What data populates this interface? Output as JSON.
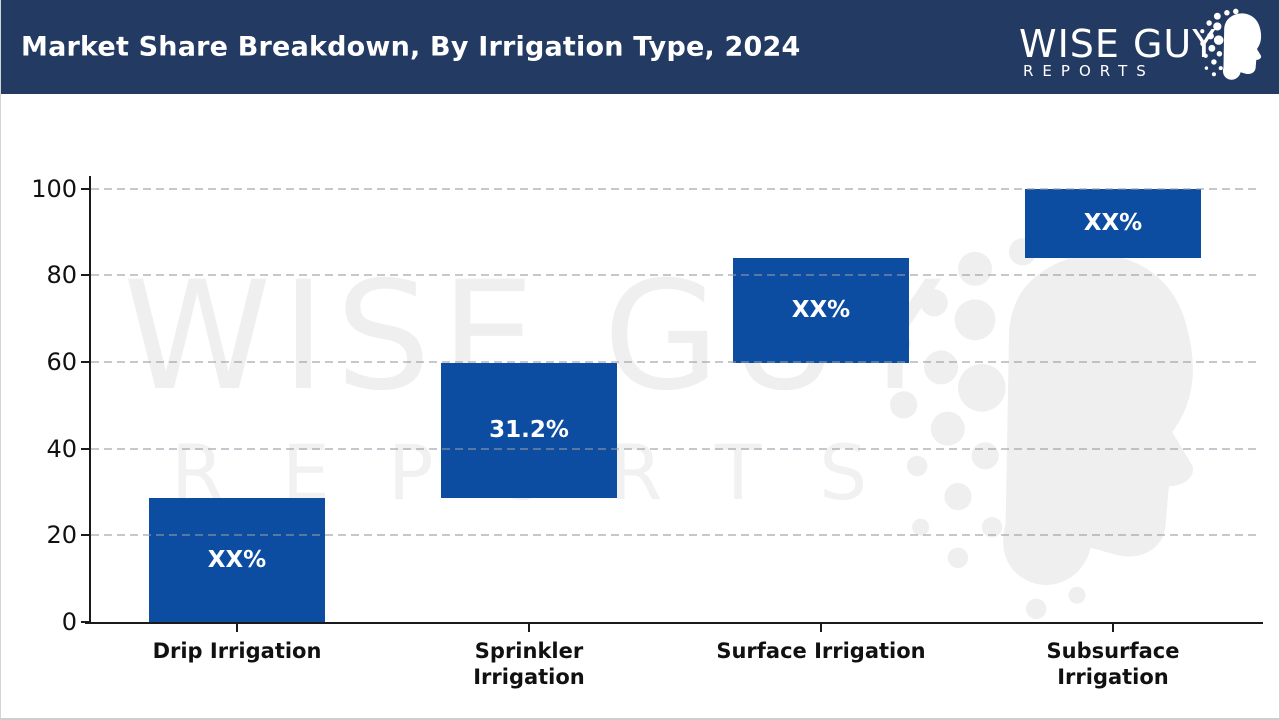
{
  "header": {
    "title": "Market Share Breakdown, By Irrigation Type, 2024",
    "logo": {
      "line1": "WISE GUY",
      "line2": "REPORTS"
    }
  },
  "watermark": {
    "line1": "WISE GUY",
    "line2": "REPORTS"
  },
  "colors": {
    "header_bg": "#233A63",
    "bar": "#0C4DA2",
    "watermark": "#EFEFEF",
    "gridline": "#C9CDD3",
    "axis": "#1A1A1A"
  },
  "chart_data": {
    "type": "bar",
    "subtype": "floating-waterfall-segments",
    "title": "Market Share Breakdown, By Irrigation Type, 2024",
    "categories": [
      "Drip Irrigation",
      "Sprinkler Irrigation",
      "Surface Irrigation",
      "Subsurface Irrigation"
    ],
    "category_label_lines": [
      [
        "Drip Irrigation"
      ],
      [
        "Sprinkler",
        "Irrigation"
      ],
      [
        "Surface Irrigation"
      ],
      [
        "Subsurface",
        "Irrigation"
      ]
    ],
    "segments": [
      {
        "category": "Drip Irrigation",
        "start": 0,
        "end": 28.6,
        "height": 28.6,
        "label": "XX%"
      },
      {
        "category": "Sprinkler Irrigation",
        "start": 28.6,
        "end": 59.8,
        "height": 31.2,
        "label": "31.2%"
      },
      {
        "category": "Surface Irrigation",
        "start": 59.8,
        "end": 84.0,
        "height": 24.2,
        "label": "XX%"
      },
      {
        "category": "Subsurface Irrigation",
        "start": 84.0,
        "end": 100.0,
        "height": 16.0,
        "label": "XX%"
      }
    ],
    "yticks": [
      0,
      20,
      40,
      60,
      80,
      100
    ],
    "ylim": [
      0,
      102
    ],
    "xlabel": "",
    "ylabel": "",
    "grid": true,
    "grid_style": "dashed",
    "legend": "none",
    "bar_width_fraction": 0.6
  }
}
